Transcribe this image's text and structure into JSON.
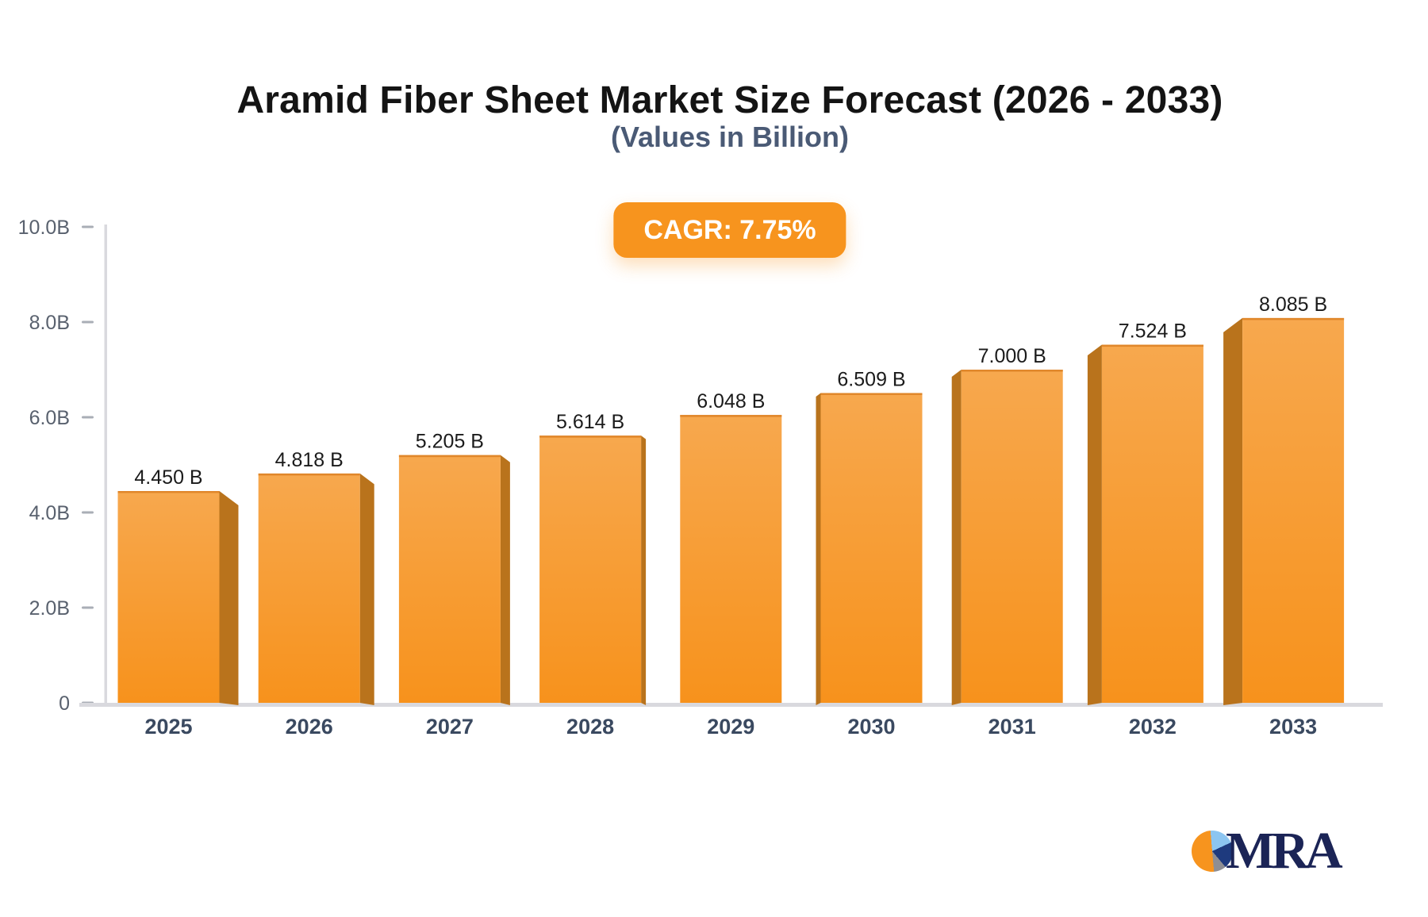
{
  "header": {
    "title": "Aramid Fiber Sheet Market Size Forecast (2026 - 2033)",
    "subtitle": "(Values in Billion)",
    "badge_label": "CAGR: 7.75%"
  },
  "chart_data": {
    "type": "bar",
    "title": "Aramid Fiber Sheet Market Size Forecast (2026 - 2033)",
    "subtitle": "(Values in Billion)",
    "annotation": "CAGR: 7.75%",
    "categories": [
      "2025",
      "2026",
      "2027",
      "2028",
      "2029",
      "2030",
      "2031",
      "2032",
      "2033"
    ],
    "values": [
      4.45,
      4.818,
      5.205,
      5.614,
      6.048,
      6.509,
      7.0,
      7.524,
      8.085
    ],
    "value_labels": [
      "4.450 B",
      "4.818 B",
      "5.205 B",
      "5.614 B",
      "6.048 B",
      "6.509 B",
      "7.000 B",
      "7.524 B",
      "8.085 B"
    ],
    "xlabel": "",
    "ylabel": "",
    "ylim": [
      0,
      10
    ],
    "yticks": {
      "values": [
        0,
        2,
        4,
        6,
        8,
        10
      ],
      "labels": [
        "0",
        "2.0B",
        "4.0B",
        "6.0B",
        "8.0B",
        "10.0B"
      ]
    },
    "grid": false,
    "legend": false,
    "bar_effect": "3d-perspective-center-vanishing-point",
    "style": {
      "bar_face_top": "#F7A84E",
      "bar_face_bottom": "#F7921C",
      "bar_side": "#B9731C",
      "bar_top_edge": "#E0872B",
      "axis_line": "#D9D9DE",
      "tick_mark": "#A9AEB6",
      "ytick_label": "#59616E",
      "xtick_label": "#3A4960",
      "value_label": "#1B1B1B",
      "badge_bg": "#F7941E",
      "badge_text": "#FFFFFF",
      "title_color": "#141414",
      "subtitle_color": "#4A5A75"
    }
  },
  "logo": {
    "text": "MRA",
    "text_color": "#1B2456",
    "pie_colors": {
      "orange": "#F7941E",
      "light_blue": "#8CC5F1",
      "navy": "#1E3A7E",
      "gray": "#8E8E93"
    }
  }
}
